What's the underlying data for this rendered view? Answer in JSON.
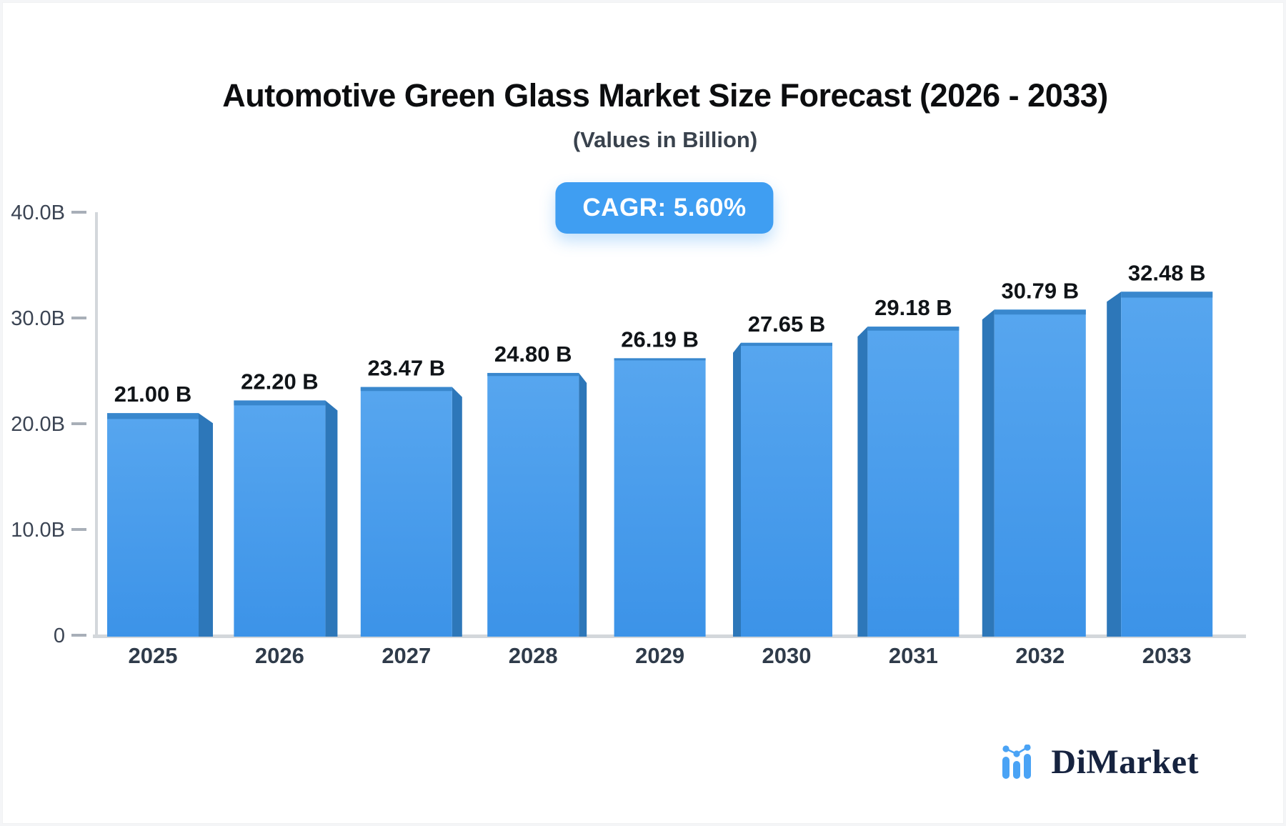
{
  "title": "Automotive Green Glass Market Size Forecast (2026 - 2033)",
  "subtitle": "(Values in Billion)",
  "badge": {
    "label": "CAGR: 5.60%"
  },
  "branding": {
    "name": "DiMarket",
    "icon": "bar-chart-logo-icon"
  },
  "colors": {
    "bar_face_top": "#57a6ef",
    "bar_face_bottom": "#3c93e8",
    "bar_side": "#2d77b9",
    "bar_top_edge": "#3987cd",
    "axis_line": "#d3d7db",
    "tick_dash": "#a8afb8",
    "badge_bg": "#3f9ef2",
    "badge_text": "#ffffff",
    "logo_blue": "#4aa3f5",
    "logo_navy": "#16233f",
    "value_text": "#101418",
    "xtick_text": "#2f3b4a",
    "ytick_text": "#3b4453"
  },
  "chart_data": {
    "type": "bar",
    "style": "3d-perspective-bars",
    "title": "Automotive Green Glass Market Size Forecast (2026 - 2033)",
    "subtitle": "(Values in Billion)",
    "annotation": "CAGR: 5.60%",
    "categories": [
      "2025",
      "2026",
      "2027",
      "2028",
      "2029",
      "2030",
      "2031",
      "2032",
      "2033"
    ],
    "values": [
      21.0,
      22.2,
      23.47,
      24.8,
      26.19,
      27.65,
      29.18,
      30.79,
      32.48
    ],
    "value_labels": [
      "21.00 B",
      "22.20 B",
      "23.47 B",
      "24.80 B",
      "26.19 B",
      "27.65 B",
      "29.18 B",
      "30.79 B",
      "32.48 B"
    ],
    "unit": "Billion",
    "xlabel": "",
    "ylabel": "",
    "ylim": [
      0,
      40
    ],
    "ytick_values": [
      40,
      30,
      20,
      10,
      0
    ],
    "ytick_labels": [
      "40.0B",
      "30.0B",
      "20.0B",
      "10.0B",
      "0"
    ],
    "grid": false,
    "legend": false
  }
}
